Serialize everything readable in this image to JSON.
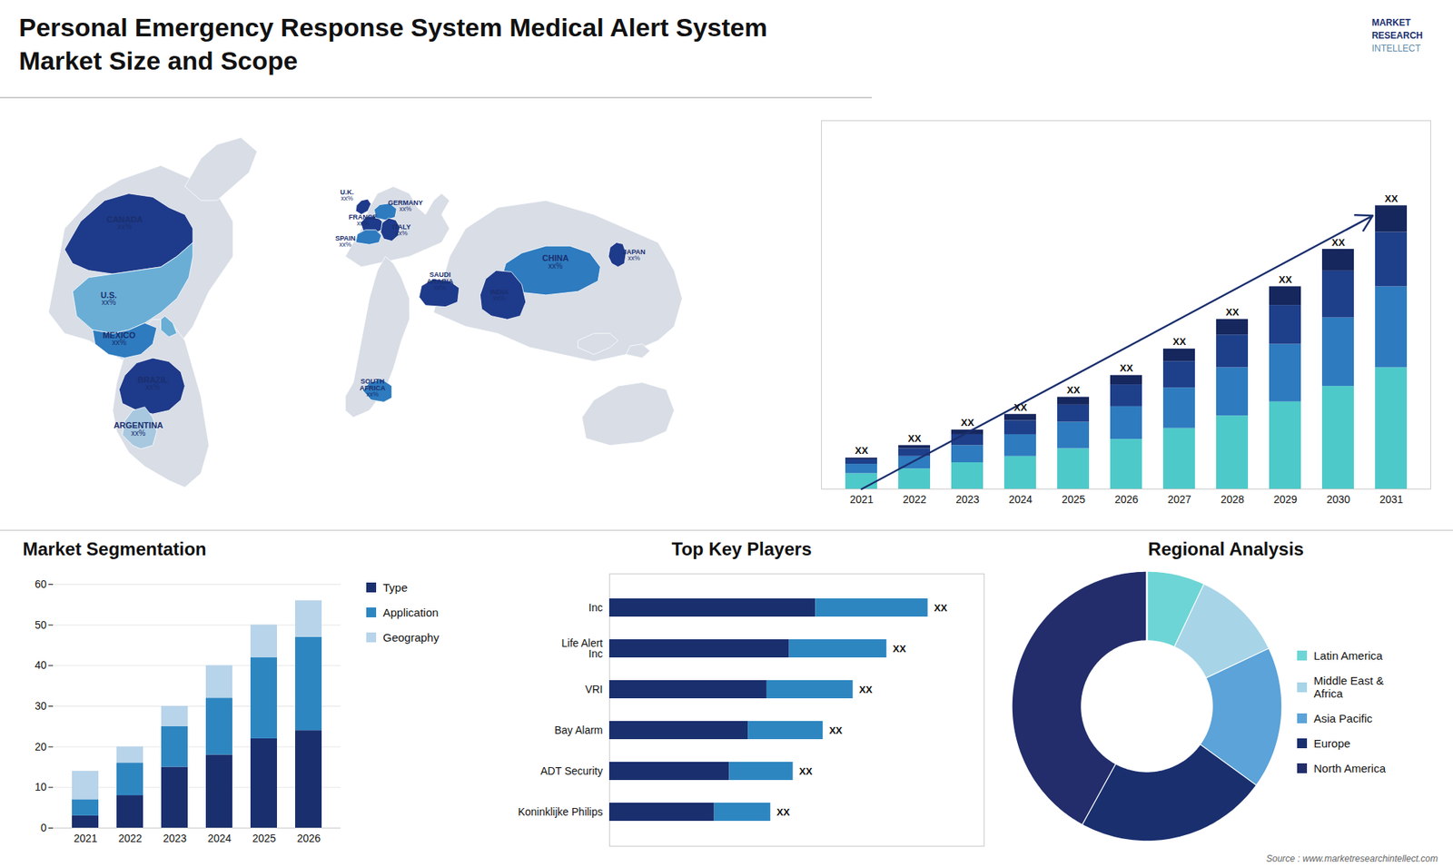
{
  "chart_data": [
    {
      "type": "bar",
      "stacked": true,
      "title": "Personal Emergency Response System Medical Alert System",
      "subtitle": "Market Size and Scope",
      "categories": [
        2021,
        2022,
        2023,
        2024,
        2025,
        2026,
        2027,
        2028,
        2029,
        2030,
        2031
      ],
      "series": [
        {
          "color": "#4ec9c9",
          "values": [
            1.0,
            1.3,
            1.7,
            2.1,
            2.6,
            3.2,
            3.9,
            4.7,
            5.6,
            6.6,
            7.8
          ]
        },
        {
          "color": "#2e7bbf",
          "values": [
            0.6,
            0.8,
            1.1,
            1.4,
            1.7,
            2.1,
            2.6,
            3.1,
            3.7,
            4.4,
            5.2
          ]
        },
        {
          "color": "#1e3f8a",
          "values": [
            0.3,
            0.5,
            0.7,
            0.9,
            1.1,
            1.4,
            1.7,
            2.1,
            2.5,
            3.0,
            3.5
          ]
        },
        {
          "color": "#16275e",
          "values": [
            0.1,
            0.2,
            0.3,
            0.4,
            0.5,
            0.6,
            0.8,
            1.0,
            1.2,
            1.4,
            1.7
          ]
        }
      ],
      "ylim": [
        0,
        23.66
      ],
      "yticks": [],
      "tick_labels": "x",
      "annotations": [
        "XX",
        "XX",
        "XX",
        "XX",
        "XX",
        "XX",
        "XX",
        "XX",
        "XX",
        "XX",
        "XX"
      ],
      "logo_text": [
        "MARKET",
        "RESEARCH",
        "INTELLECT"
      ],
      "caption": "Source : www.marketresearchintellect.com"
    },
    {
      "type": "map",
      "categories": [
        "CANADA",
        "U.S.",
        "MEXICO",
        "BRAZIL",
        "ARGENTINA",
        "U.K.",
        "FRANCE",
        "SPAIN",
        "GERMANY",
        "ITALY",
        "SAUDI\nARABIA",
        "SOUTH\nAFRICA",
        "CHINA",
        "INDIA",
        "JAPAN"
      ],
      "colors": [
        "#1e3a8a",
        "#6aaed6",
        "#2e7bbf",
        "#1e3a8a",
        "#a8c8e0",
        "#1e3a8a",
        "#1e3a8a",
        "#2e7bbf",
        "#2e7bbf",
        "#1e3a8a",
        "#1e3a8a",
        "#2e7bbf",
        "#2e7bbf",
        "#1e3a8a",
        "#1e3a8a"
      ],
      "color": "#d8dde6",
      "annotations": [
        "xx%",
        "xx%",
        "xx%",
        "xx%",
        "xx%",
        "xx%",
        "xx%",
        "xx%",
        "xx%",
        "xx%",
        "xx%",
        "xx%",
        "xx%",
        "xx%",
        "xx%"
      ]
    },
    {
      "type": "bar",
      "stacked": true,
      "title": "Market Segmentation",
      "categories": [
        2021,
        2022,
        2023,
        2024,
        2025,
        2026
      ],
      "series": [
        {
          "name": "Type",
          "color": "#1a2f6e",
          "values": [
            3,
            8,
            15,
            18,
            22,
            24
          ]
        },
        {
          "name": "Application",
          "color": "#2e86c1",
          "values": [
            4,
            8,
            10,
            14,
            20,
            23
          ]
        },
        {
          "name": "Geography",
          "color": "#b8d4ea",
          "values": [
            7,
            4,
            5,
            8,
            8,
            9
          ]
        }
      ],
      "ylim": [
        0,
        60
      ],
      "yticks": [
        0,
        10,
        20,
        30,
        40,
        50,
        60
      ],
      "grid": true,
      "legend": "right"
    },
    {
      "type": "bar",
      "orientation": "horizontal",
      "stacked": true,
      "title": "Top Key Players",
      "categories": [
        "Inc",
        "Life Alert\nInc",
        "VRI",
        "Bay Alarm",
        "ADT Security",
        "Koninklijke Philips"
      ],
      "series": [
        {
          "color": "#1a2f6e",
          "values": [
            55,
            48,
            42,
            37,
            32,
            28
          ]
        },
        {
          "color": "#2e86c1",
          "values": [
            30,
            26,
            23,
            20,
            17,
            15
          ]
        }
      ],
      "xlim": [
        0,
        100
      ],
      "xticks": [],
      "tick_labels": "y",
      "annotations": [
        "XX",
        "XX",
        "XX",
        "XX",
        "XX",
        "XX"
      ]
    },
    {
      "type": "pie",
      "title": "Regional Analysis",
      "categories": [
        "Latin America",
        "Middle East &\nAfrica",
        "Asia Pacific",
        "Europe",
        "North America"
      ],
      "values": [
        7,
        11,
        17,
        23,
        42
      ],
      "colors": [
        "#6dd5d5",
        "#a8d4e8",
        "#5ba3d9",
        "#1a2f6e",
        "#232d6b"
      ],
      "legend": "right"
    }
  ]
}
